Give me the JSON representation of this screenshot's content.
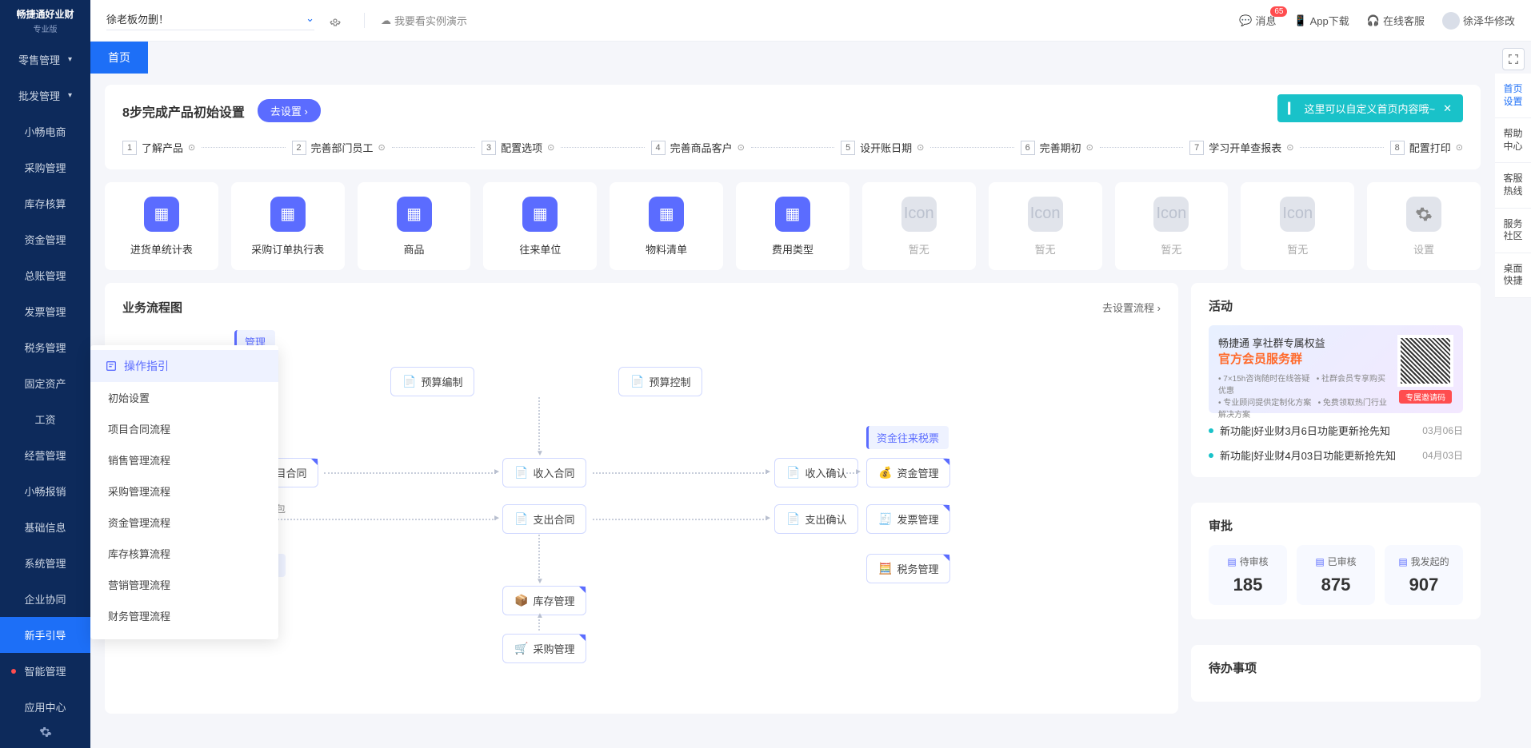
{
  "brand": {
    "name": "畅捷通好业财",
    "edition": "专业版"
  },
  "tenant": "徐老板勿删！",
  "demoLink": "我要看实例演示",
  "topActions": {
    "msg": "消息",
    "msgBadge": "65",
    "app": "App下载",
    "cs": "在线客服",
    "user": "徐泽华修改"
  },
  "tab": "首页",
  "rail": [
    "首页设置",
    "帮助中心",
    "客服热线",
    "服务社区",
    "桌面快捷"
  ],
  "sidebar": [
    {
      "label": "零售管理",
      "chev": true
    },
    {
      "label": "批发管理",
      "chev": true
    },
    {
      "label": "小畅电商"
    },
    {
      "label": "采购管理"
    },
    {
      "label": "库存核算"
    },
    {
      "label": "资金管理"
    },
    {
      "label": "总账管理"
    },
    {
      "label": "发票管理"
    },
    {
      "label": "税务管理"
    },
    {
      "label": "固定资产"
    },
    {
      "label": "工资"
    },
    {
      "label": "经营管理"
    },
    {
      "label": "小畅报销"
    },
    {
      "label": "基础信息"
    },
    {
      "label": "系统管理"
    },
    {
      "label": "企业协同"
    },
    {
      "label": "新手引导",
      "active": true
    },
    {
      "label": "智能管理",
      "dot": true
    },
    {
      "label": "应用中心"
    }
  ],
  "setup": {
    "title": "8步完成产品初始设置",
    "btn": "去设置 ›",
    "tip": "这里可以自定义首页内容哦~",
    "steps": [
      "了解产品",
      "完善部门员工",
      "配置选项",
      "完善商品客户",
      "设开账日期",
      "完善期初",
      "学习开单查报表",
      "配置打印"
    ]
  },
  "quick": [
    {
      "label": "进货单统计表",
      "empty": false
    },
    {
      "label": "采购订单执行表",
      "empty": false
    },
    {
      "label": "商品",
      "empty": false
    },
    {
      "label": "往来单位",
      "empty": false
    },
    {
      "label": "物料清单",
      "empty": false
    },
    {
      "label": "费用类型",
      "empty": false
    },
    {
      "label": "暂无",
      "empty": true
    },
    {
      "label": "暂无",
      "empty": true
    },
    {
      "label": "暂无",
      "empty": true
    },
    {
      "label": "暂无",
      "empty": true
    },
    {
      "label": "设置",
      "empty": true,
      "gear": true
    }
  ],
  "flow": {
    "title": "业务流程图",
    "link": "去设置流程 ›",
    "tags": {
      "budget": "管理",
      "proj": "管理",
      "supply": "链管理",
      "fin": "资金往来税票"
    },
    "nodes": {
      "budgetEdit": "预算编制",
      "budgetCtrl": "预算控制",
      "projContract": "项目合同",
      "incomeContract": "收入合同",
      "incomeConfirm": "收入确认",
      "expenseContract": "支出合同",
      "expenseConfirm": "支出确认",
      "stockMgmt": "库存管理",
      "purchaseMgmt": "采购管理",
      "funds": "资金管理",
      "invoice": "发票管理",
      "tax": "税务管理"
    },
    "sub": "分包"
  },
  "activity": {
    "title": "活动",
    "promo1": "畅捷通 享社群专属权益",
    "promo2": "官方会员服务群",
    "news": [
      {
        "t": "新功能|好业财3月6日功能更新抢先知",
        "d": "03月06日"
      },
      {
        "t": "新功能|好业财4月03日功能更新抢先知",
        "d": "04月03日"
      }
    ]
  },
  "approval": {
    "title": "审批",
    "boxes": [
      {
        "l": "待审核",
        "n": "185"
      },
      {
        "l": "已审核",
        "n": "875"
      },
      {
        "l": "我发起的",
        "n": "907"
      }
    ]
  },
  "todo": {
    "title": "待办事项"
  },
  "popover": {
    "head": "操作指引",
    "items": [
      "初始设置",
      "项目合同流程",
      "销售管理流程",
      "采购管理流程",
      "资金管理流程",
      "库存核算流程",
      "营销管理流程",
      "财务管理流程"
    ]
  }
}
